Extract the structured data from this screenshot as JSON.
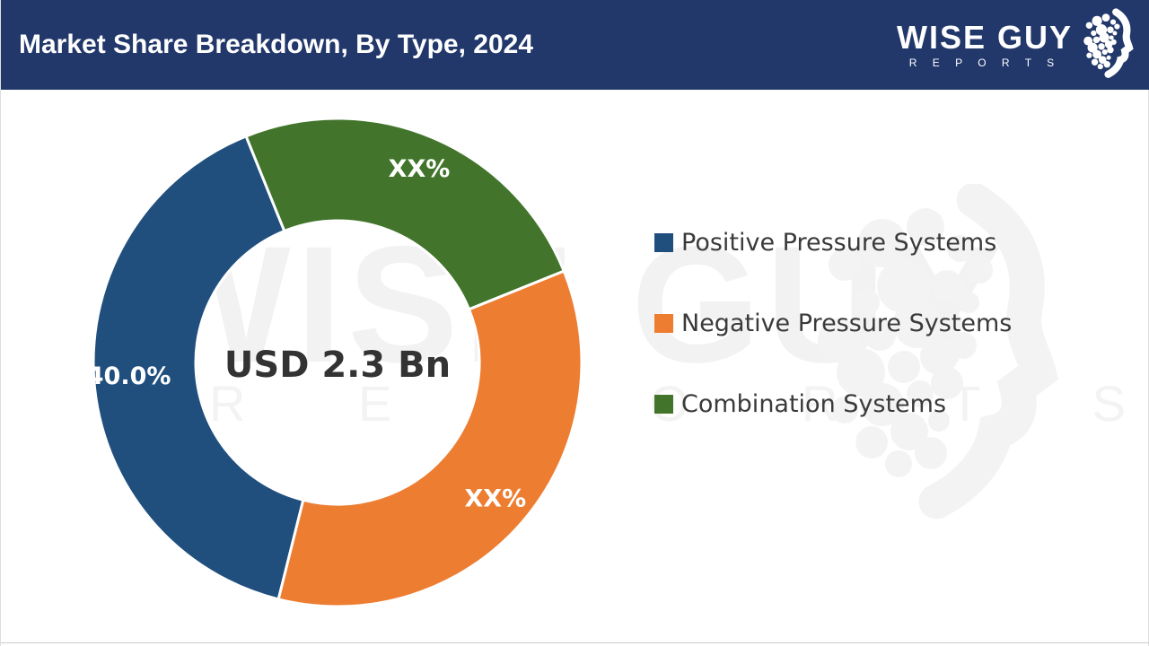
{
  "header": {
    "title": "Market Share Breakdown, By Type, 2024",
    "logo": {
      "line1": "WISE GUY",
      "line2": "R E P O R T S"
    }
  },
  "chart_data": {
    "type": "pie",
    "subtype": "donut",
    "title": "Market Share Breakdown, By Type, 2024",
    "center_label": "USD 2.3 Bn",
    "start_angle_deg_cw_from_top": 194,
    "legend_position": "right",
    "segments": [
      {
        "name": "Positive Pressure Systems",
        "label": "40.0%",
        "value": 40.0,
        "color": "#204F7E"
      },
      {
        "name": "Combination Systems",
        "label": "XX%",
        "value": 25.0,
        "color": "#42752B"
      },
      {
        "name": "Negative Pressure Systems",
        "label": "XX%",
        "value": 35.0,
        "color": "#ED7D31"
      }
    ]
  },
  "legend": {
    "items": [
      {
        "label": "Positive Pressure Systems",
        "color": "#204F7E"
      },
      {
        "label": "Negative Pressure Systems",
        "color": "#ED7D31"
      },
      {
        "label": "Combination Systems",
        "color": "#42752B"
      }
    ]
  },
  "watermark": {
    "line1": "WISE GUY",
    "line2": "R E P O R T S"
  },
  "colors": {
    "header_bg": "#22386B",
    "blue": "#204F7E",
    "orange": "#ED7D31",
    "green": "#42752B",
    "center_text": "#333333"
  }
}
